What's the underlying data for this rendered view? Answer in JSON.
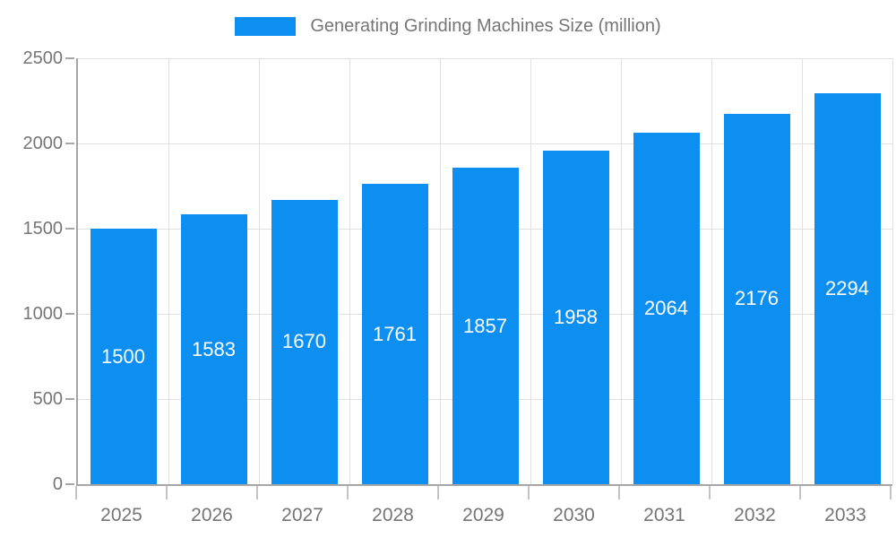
{
  "chart_data": {
    "type": "bar",
    "title": "Generating Grinding Machines Size (million)",
    "categories": [
      "2025",
      "2026",
      "2027",
      "2028",
      "2029",
      "2030",
      "2031",
      "2032",
      "2033"
    ],
    "series": [
      {
        "name": "Generating Grinding Machines Size (million)",
        "values": [
          1500,
          1583,
          1670,
          1761,
          1857,
          1958,
          2064,
          2176,
          2294
        ]
      }
    ],
    "bar_labels": [
      "1500",
      "1583",
      "1670",
      "1761",
      "1857",
      "1958",
      "2064",
      "2176",
      "2294"
    ],
    "xlabel": "",
    "ylabel": "",
    "ylim": [
      0,
      2500
    ],
    "yticks": [
      0,
      500,
      1000,
      1500,
      2000,
      2500
    ],
    "grid": "on",
    "legend_position": "top-center",
    "colors": {
      "bar": "#0d8ff2",
      "bar_label_text": "#ffffff",
      "axis_text": "#757575",
      "gridline": "#e0e0e0",
      "axis_line": "#a6a6a6"
    }
  },
  "legend": {
    "label": "Generating Grinding Machines Size (million)",
    "swatch_color": "#0d8ff2"
  }
}
